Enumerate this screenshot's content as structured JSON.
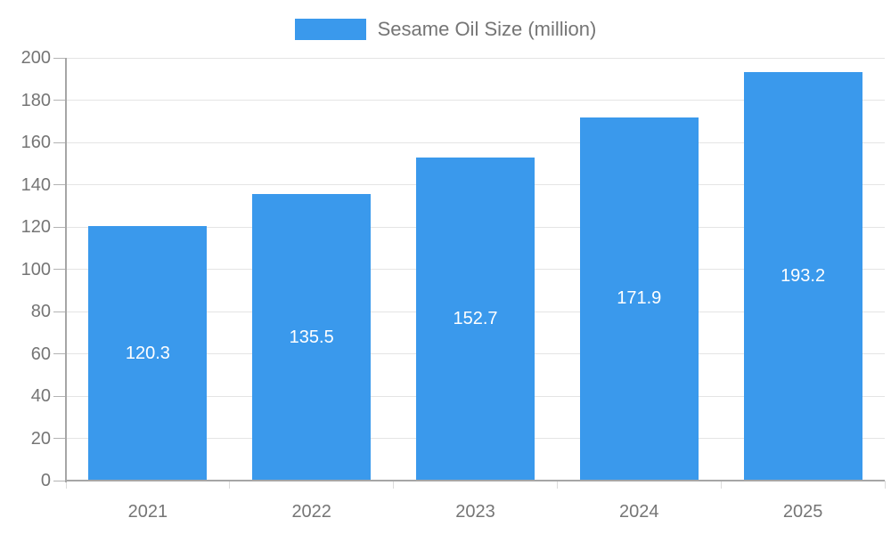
{
  "legend": {
    "label": "Sesame Oil Size (million)"
  },
  "colors": {
    "bar": "#3a99ec",
    "axis_line": "#a6a6a6",
    "grid_line": "#e4e4e4",
    "y_tick": "#b3b3b3",
    "x_tick": "#dcdcdc",
    "tick_text": "#757575",
    "value_label": "#ffffff"
  },
  "chart_data": {
    "type": "bar",
    "title": "Sesame Oil Size (million)",
    "series_name": "Sesame Oil Size (million)",
    "categories": [
      "2021",
      "2022",
      "2023",
      "2024",
      "2025"
    ],
    "values": [
      120.3,
      135.5,
      152.7,
      171.9,
      193.2
    ],
    "value_labels": [
      "120.3",
      "135.5",
      "152.7",
      "171.9",
      "193.2"
    ],
    "xlabel": "",
    "ylabel": "",
    "ylim": [
      0,
      200
    ],
    "ytick_step": 20,
    "ytick_labels": [
      "0",
      "20",
      "40",
      "60",
      "80",
      "100",
      "120",
      "140",
      "160",
      "180",
      "200"
    ],
    "grid": true,
    "legend_position": "top-center",
    "value_label_position": "inside-center",
    "bar_color": "#3a99ec"
  }
}
